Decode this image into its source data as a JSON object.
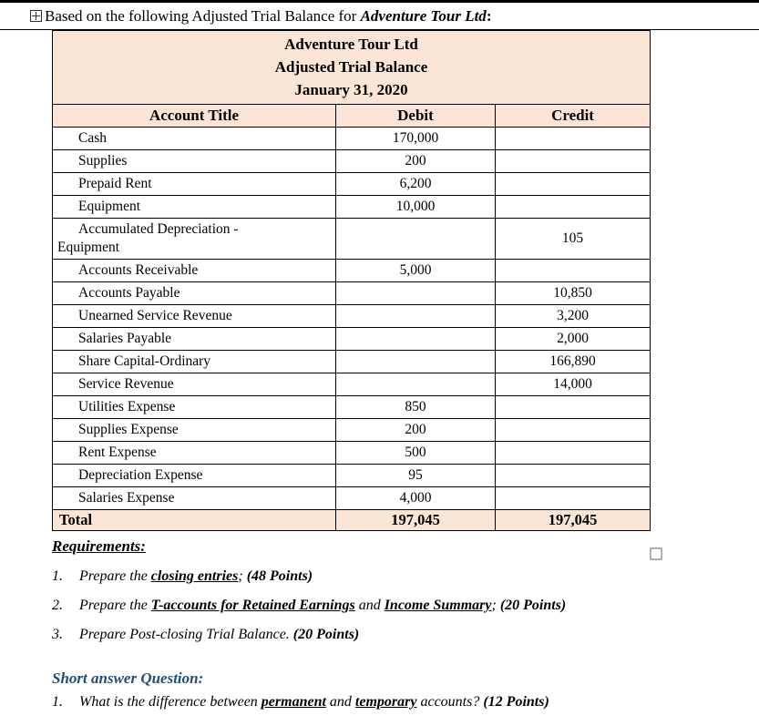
{
  "intro": {
    "prefix": "Based on the following Adjusted Trial Balance for ",
    "company": "Adventure Tour Ltd",
    "suffix": ":"
  },
  "table": {
    "title_lines": [
      "Adventure Tour Ltd",
      "Adjusted Trial Balance",
      "January 31, 2020"
    ],
    "headers": [
      "Account Title",
      "Debit",
      "Credit"
    ],
    "rows": [
      {
        "account": "Cash",
        "debit": "170,000",
        "credit": ""
      },
      {
        "account": "Supplies",
        "debit": "200",
        "credit": ""
      },
      {
        "account": "Prepaid Rent",
        "debit": "6,200",
        "credit": ""
      },
      {
        "account": "Equipment",
        "debit": "10,000",
        "credit": ""
      },
      {
        "account": "Accumulated Depreciation -\nEquipment",
        "debit": "",
        "credit": "105"
      },
      {
        "account": "Accounts Receivable",
        "debit": "5,000",
        "credit": ""
      },
      {
        "account": "Accounts Payable",
        "debit": "",
        "credit": "10,850"
      },
      {
        "account": "Unearned Service Revenue",
        "debit": "",
        "credit": "3,200"
      },
      {
        "account": "Salaries Payable",
        "debit": "",
        "credit": "2,000"
      },
      {
        "account": "Share Capital-Ordinary",
        "debit": "",
        "credit": "166,890"
      },
      {
        "account": "Service Revenue",
        "debit": "",
        "credit": "14,000"
      },
      {
        "account": "Utilities Expense",
        "debit": "850",
        "credit": ""
      },
      {
        "account": "Supplies Expense",
        "debit": "200",
        "credit": ""
      },
      {
        "account": "Rent Expense",
        "debit": "500",
        "credit": ""
      },
      {
        "account": "Depreciation Expense",
        "debit": "95",
        "credit": ""
      },
      {
        "account": "Salaries Expense",
        "debit": "4,000",
        "credit": ""
      }
    ],
    "total": {
      "label": "Total",
      "debit": "197,045",
      "credit": "197,045"
    }
  },
  "requirements": {
    "heading": "Requirements:",
    "items": [
      {
        "number": "1.",
        "pre": "Prepare the ",
        "emph1": "closing entries",
        "mid": "; ",
        "points": "(48 Points)"
      },
      {
        "number": "2.",
        "pre": "Prepare the ",
        "emph1": "T-accounts for Retained Earnings",
        "mid": " and ",
        "emph2": "Income Summary",
        "post": "; ",
        "points": "(20 Points)"
      },
      {
        "number": "3.",
        "pre": "Prepare Post-closing Trial Balance. ",
        "points": "(20 Points)"
      }
    ]
  },
  "short_answer": {
    "heading": "Short answer Question:",
    "question": {
      "number": "1.",
      "pre": "What is the difference between ",
      "emph1": "permanent",
      "mid": " and ",
      "emph2": "temporary",
      "post": " accounts? ",
      "points": "(12 Points)"
    }
  },
  "colors": {
    "table_fill": "#fbe5d6",
    "accent_heading": "#1f4e79"
  }
}
